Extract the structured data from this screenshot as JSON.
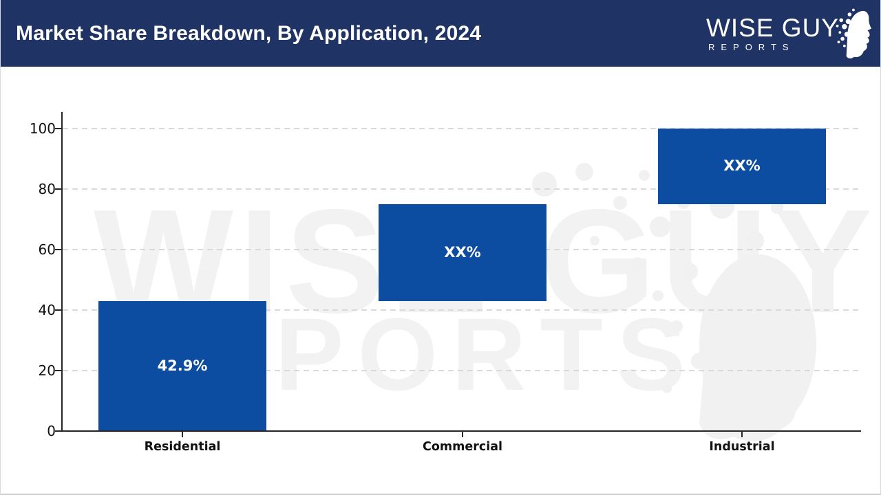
{
  "header": {
    "title": "Market Share Breakdown, By Application, 2024",
    "bg_color": "#1F3464",
    "logo": {
      "line1": "WISE GUY",
      "line2": "REPORTS"
    }
  },
  "watermark": {
    "line1": "WISE GUY",
    "line2": "REPORTS"
  },
  "chart_data": {
    "type": "bar",
    "subtype": "waterfall-stacked-percentage",
    "title": "Market Share Breakdown, By Application, 2024",
    "categories": [
      "Residential",
      "Commercial",
      "Industrial"
    ],
    "series": [
      {
        "name": "Market Share (%)",
        "segments": [
          {
            "category": "Residential",
            "start": 0,
            "end": 42.9,
            "label": "42.9%"
          },
          {
            "category": "Commercial",
            "start": 42.9,
            "end": 75,
            "label": "XX%"
          },
          {
            "category": "Industrial",
            "start": 75,
            "end": 100,
            "label": "XX%"
          }
        ]
      }
    ],
    "xlabel": "",
    "ylabel": "",
    "ylim": [
      0,
      100
    ],
    "yticks": [
      0,
      20,
      40,
      60,
      80,
      100
    ],
    "grid": "horizontal-dashed",
    "legend": "none",
    "bar_color": "#0C4DA2",
    "bar_label_color": "#FFFFFF",
    "grid_color": "#D9D9D9",
    "axis_color": "#262626"
  }
}
